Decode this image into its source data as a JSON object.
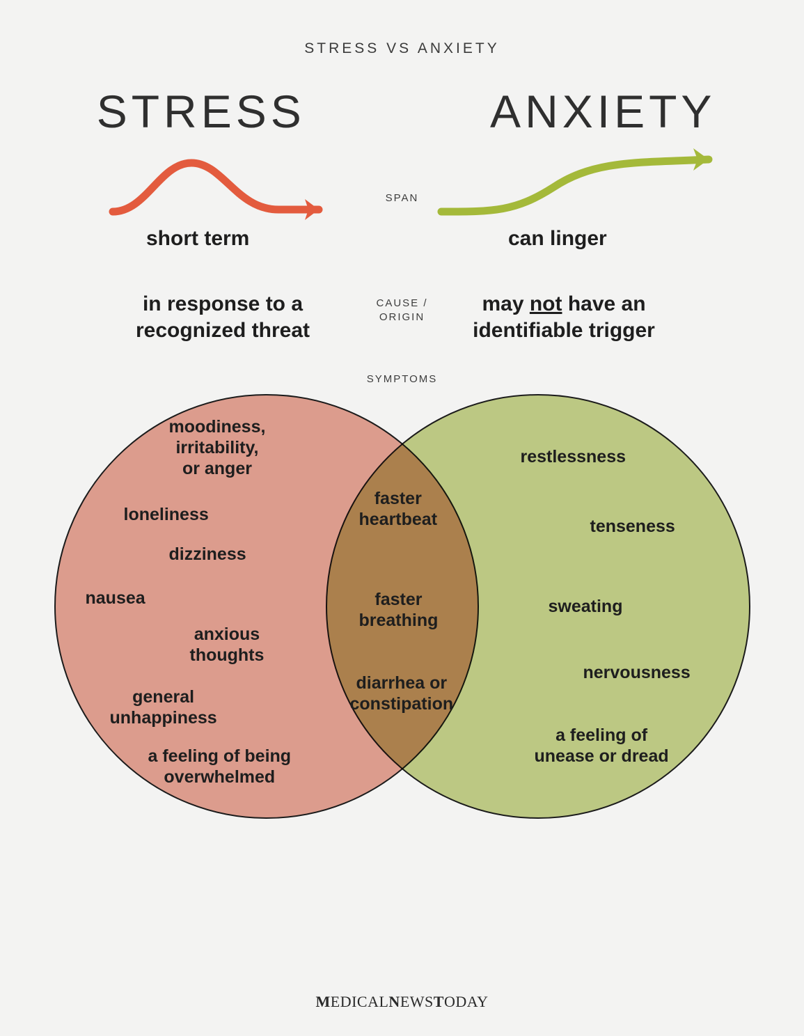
{
  "title": "STRESS VS ANXIETY",
  "left_heading": "STRESS",
  "right_heading": "ANXIETY",
  "colors": {
    "background": "#f3f3f2",
    "stress": "#e35b3e",
    "anxiety": "#a4b93a",
    "circle_left": "#e7a495",
    "circle_right": "#c6d28a",
    "stroke": "#1c1c1c"
  },
  "span": {
    "tag": "SPAN",
    "left_label": "short term",
    "right_label": "can linger",
    "left_arrow": {
      "type": "bump-then-flat",
      "color": "#e35b3e",
      "stroke_width": 11
    },
    "right_arrow": {
      "type": "s-curve-rising",
      "color": "#a4b93a",
      "stroke_width": 11
    }
  },
  "cause": {
    "tag_line1": "CAUSE /",
    "tag_line2": "ORIGIN",
    "left_line1": "in response to a",
    "left_line2": "recognized threat",
    "right_pre": "may ",
    "right_not": "not",
    "right_post": " have an",
    "right_line2": "identifiable trigger"
  },
  "venn": {
    "tag": "SYMPTOMS",
    "left_items": [
      "moodiness,\nirritability,\nor anger",
      "loneliness",
      "dizziness",
      "nausea",
      "anxious\nthoughts",
      "general\nunhappiness",
      "a feeling of being\noverwhelmed"
    ],
    "middle_items": [
      "faster\nheartbeat",
      "faster\nbreathing",
      "diarrhea or\nconstipation"
    ],
    "right_items": [
      "restlessness",
      "tenseness",
      "sweating",
      "nervousness",
      "a feeling of\nunease or dread"
    ]
  },
  "footer": {
    "bold1": "M",
    "thin1": "EDICAL",
    "bold2": "N",
    "thin2": "EWS",
    "bold3": "T",
    "thin3": "ODAY"
  }
}
